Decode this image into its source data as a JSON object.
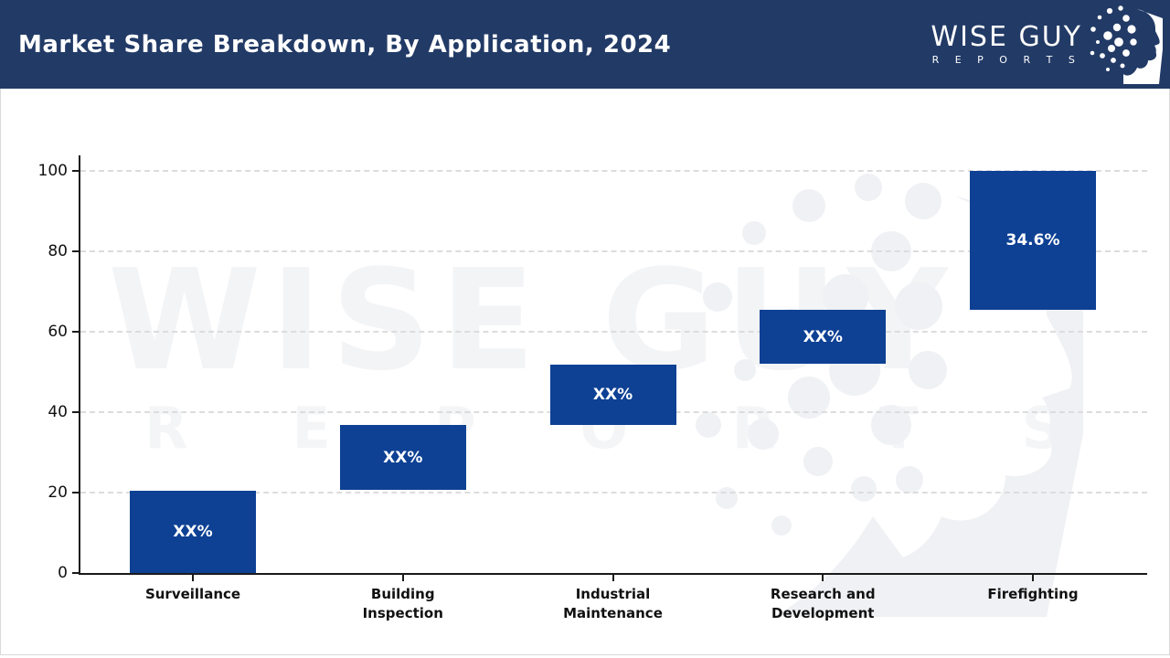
{
  "header": {
    "title": "Market Share Breakdown, By Application, 2024",
    "logo_line1": "WISE GUY",
    "logo_line2": "R E P O R T S",
    "bg_color": "#223a66"
  },
  "watermark": {
    "line1": "WISE GUY",
    "line2": "R E P O R T S"
  },
  "chart_data": {
    "type": "bar",
    "variant": "waterfall",
    "title": "Market Share Breakdown, By Application, 2024",
    "xlabel": "",
    "ylabel": "",
    "ylim": [
      0,
      100
    ],
    "yticks": [
      0,
      20,
      40,
      60,
      80,
      100
    ],
    "grid": "horizontal-dashed",
    "legend": "none",
    "categories": [
      "Surveillance",
      "Building Inspection",
      "Industrial Maintenance",
      "Research and Development",
      "Firefighting"
    ],
    "category_label_lines": [
      "Surveillance",
      "Building\nInspection",
      "Industrial\nMaintenance",
      "Research and\nDevelopment",
      "Firefighting"
    ],
    "segments": [
      {
        "category": "Surveillance",
        "start": 0,
        "end": 20.5,
        "value": 20.5,
        "label": "XX%"
      },
      {
        "category": "Building Inspection",
        "start": 20.7,
        "end": 36.8,
        "value": 16.1,
        "label": "XX%"
      },
      {
        "category": "Industrial Maintenance",
        "start": 36.8,
        "end": 51.8,
        "value": 15.0,
        "label": "XX%"
      },
      {
        "category": "Research and Development",
        "start": 52.0,
        "end": 65.4,
        "value": 13.4,
        "label": "XX%"
      },
      {
        "category": "Firefighting",
        "start": 65.4,
        "end": 100,
        "value": 34.6,
        "label": "34.6%"
      }
    ],
    "colors": {
      "bar": "#0e4194",
      "bar_label": "#ffffff",
      "axis": "#1a1a1a",
      "grid": "#dcdcdc",
      "header_bg": "#223a66",
      "watermark": "#f3f4f6"
    }
  }
}
